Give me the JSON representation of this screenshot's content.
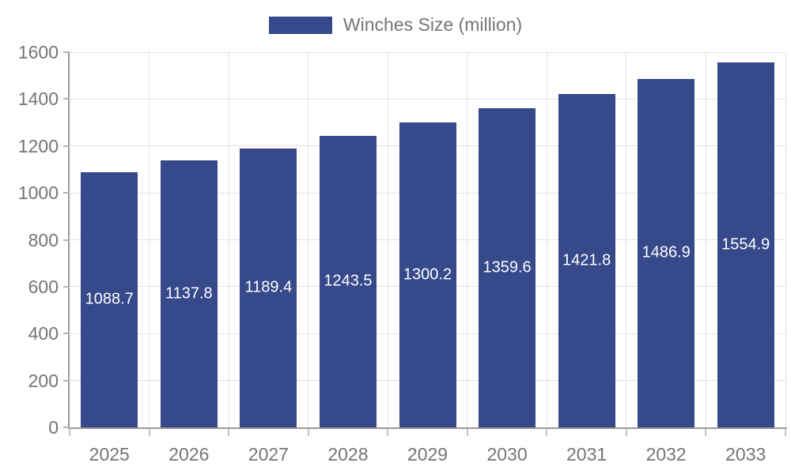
{
  "legend": {
    "label": "Winches Size (million)",
    "swatch_color": "#36498a"
  },
  "chart_data": {
    "type": "bar",
    "title": "Winches Size (million)",
    "series_name": "Winches Size (million)",
    "categories": [
      "2025",
      "2026",
      "2027",
      "2028",
      "2029",
      "2030",
      "2031",
      "2032",
      "2033"
    ],
    "values": [
      1088.7,
      1137.8,
      1189.4,
      1243.5,
      1300.2,
      1359.6,
      1421.8,
      1486.9,
      1554.9
    ],
    "value_labels": [
      "1088.7",
      "1137.8",
      "1189.4",
      "1243.5",
      "1300.2",
      "1359.6",
      "1421.8",
      "1486.9",
      "1554.9"
    ],
    "xlabel": "",
    "ylabel": "",
    "ylim": [
      0,
      1600
    ],
    "ytick_step": 200,
    "ytick_labels": [
      "0",
      "200",
      "400",
      "600",
      "800",
      "1000",
      "1200",
      "1400",
      "1600"
    ],
    "grid": true,
    "legend_position": "top",
    "bar_color": "#36498a",
    "value_label_color": "#ffffff",
    "axis_text_color": "#757575",
    "axis_line_color": "#999999",
    "gridline_color": "#e2e2e2",
    "background_color": "#ffffff"
  }
}
